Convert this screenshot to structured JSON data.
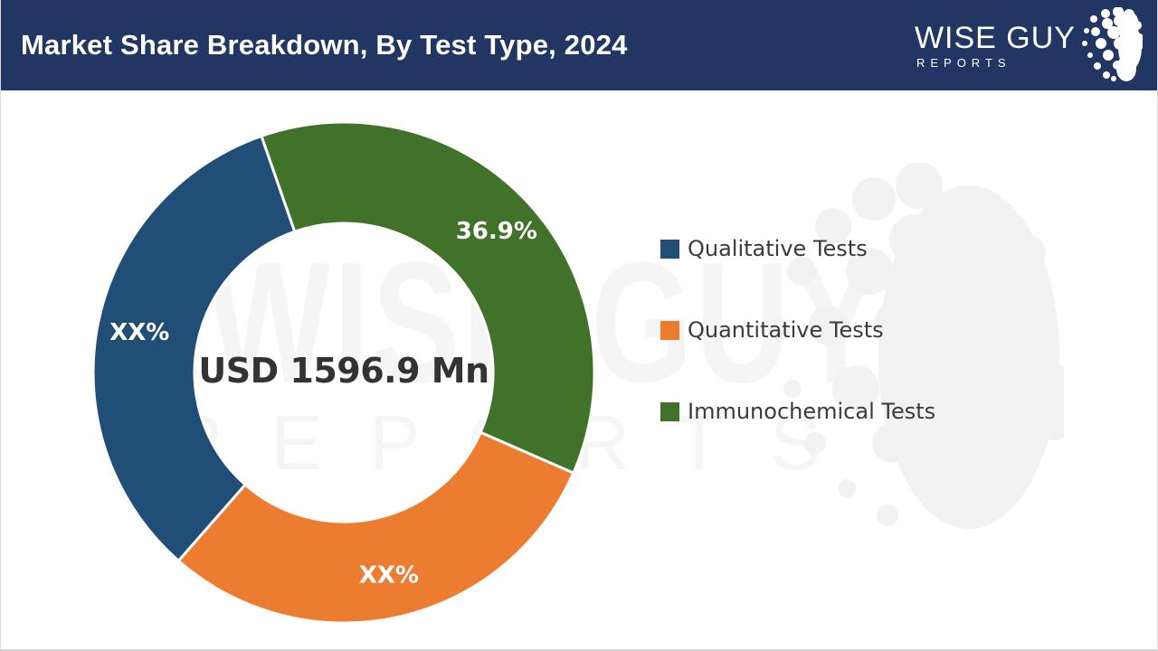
{
  "header": {
    "title": "Market Share Breakdown, By Test Type, 2024",
    "logo_line1": "WISE GUY",
    "logo_line2": "REPORTS"
  },
  "watermark": {
    "text1": "WISE GUY",
    "text2": "REPORTS"
  },
  "chart_data": {
    "type": "pie",
    "subtype": "donut",
    "title": "Market Share Breakdown, By Test Type, 2024",
    "center_label": "USD 1596.9 Mn",
    "start_angle_deg": -19.2,
    "direction": "clockwise",
    "segments": [
      {
        "name": "Immunochemical Tests",
        "display_label": "36.9%",
        "percent": 36.9,
        "color": "#41722a"
      },
      {
        "name": "Quantitative Tests",
        "display_label": "XX%",
        "percent": 29.9,
        "color": "#ec7c30"
      },
      {
        "name": "Qualitative Tests",
        "display_label": "XX%",
        "percent": 33.2,
        "color": "#204e77"
      }
    ],
    "legend": [
      {
        "label": "Qualitative Tests",
        "color": "#204e77"
      },
      {
        "label": "Quantitative Tests",
        "color": "#ec7c30"
      },
      {
        "label": "Immunochemical Tests",
        "color": "#41722a"
      }
    ],
    "legend_position": "right"
  },
  "colors": {
    "header_bg": "#223664",
    "canvas_bg": "#ffffff",
    "center_text": "#333333",
    "legend_text": "#3a3a3a",
    "border": "#d9d9d9",
    "watermark": "#f5f5f5",
    "watermark_face": "#f2f2f2"
  }
}
